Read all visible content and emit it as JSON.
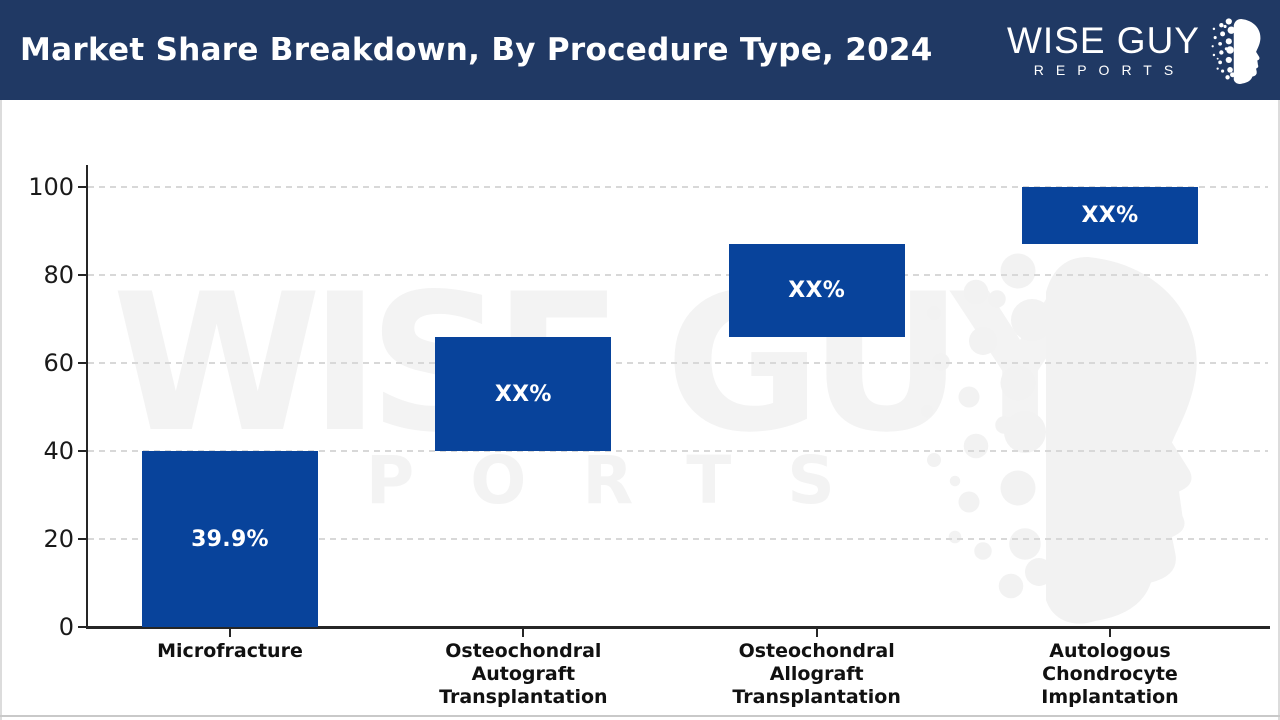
{
  "header": {
    "title": "Market Share Breakdown, By Procedure Type, 2024",
    "logo": {
      "line1": "WISE GUY",
      "line2": "REPORTS"
    }
  },
  "watermark": {
    "line1": "WISE GUY",
    "line2": "REPORTS"
  },
  "chart_data": {
    "type": "bar",
    "subtype": "waterfall",
    "title": "Market Share Breakdown, By Procedure Type, 2024",
    "categories": [
      "Microfracture",
      "Osteochondral\nAutograft\nTransplantation",
      "Osteochondral\nAllograft\nTransplantation",
      "Autologous\nChondrocyte\nImplantation"
    ],
    "segments": [
      {
        "start": 0,
        "end": 39.9,
        "label": "39.9%"
      },
      {
        "start": 39.9,
        "end": 65.9,
        "label": "XX%"
      },
      {
        "start": 65.9,
        "end": 87.0,
        "label": "XX%"
      },
      {
        "start": 87.0,
        "end": 100,
        "label": "XX%"
      }
    ],
    "yticks": [
      0,
      20,
      40,
      60,
      80,
      100
    ],
    "ylim": [
      0,
      100
    ],
    "xlabel": "",
    "ylabel": "",
    "grid": "horizontal-dashed",
    "legend": "none",
    "bar_color": "#08439b",
    "bar_label_color": "#ffffff",
    "header_color": "#203964",
    "watermark_color": "#f3f3f3"
  }
}
